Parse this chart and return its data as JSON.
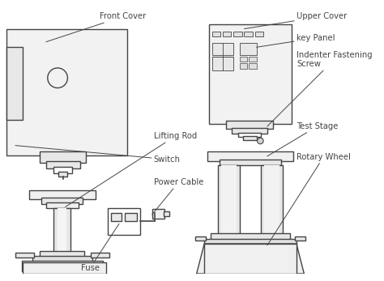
{
  "bg_color": "#ffffff",
  "lc": "#444444",
  "fig_width": 4.74,
  "fig_height": 3.47,
  "dpi": 100,
  "labels": {
    "front_cover": "Front Cover",
    "lifting_rod": "Lifting Rod",
    "switch": "Switch",
    "power_cable": "Power Cable",
    "fuse": "Fuse",
    "upper_cover": "Upper Cover",
    "key_panel": "key Panel",
    "indenter_fastening": "Indenter Fastening\nScrew",
    "test_stage": "Test Stage",
    "rotary_wheel": "Rotary Wheel"
  }
}
